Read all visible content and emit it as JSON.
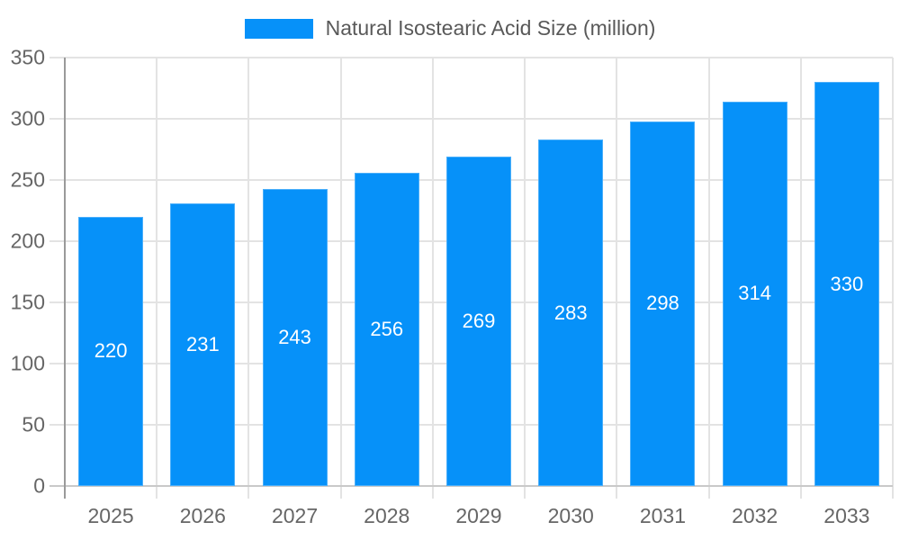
{
  "legend": {
    "items": [
      {
        "label": "Natural Isostearic Acid Size (million)",
        "color": "#0691F9"
      }
    ]
  },
  "chart_data": {
    "type": "bar",
    "title": "",
    "categories": [
      "2025",
      "2026",
      "2027",
      "2028",
      "2029",
      "2030",
      "2031",
      "2032",
      "2033"
    ],
    "series": [
      {
        "name": "Natural Isostearic Acid Size (million)",
        "values": [
          220,
          231,
          243,
          256,
          269,
          283,
          298,
          314,
          330
        ]
      }
    ],
    "xlabel": "",
    "ylabel": "",
    "ylim": [
      0,
      350
    ],
    "ytick_interval": 50,
    "yticks": [
      0,
      50,
      100,
      150,
      200,
      250,
      300,
      350
    ],
    "grid": true,
    "legend_position": "top",
    "bar_color": "#0691F9",
    "value_label_color": "#FFFFFF"
  },
  "colors": {
    "background": "#FFFFFF",
    "grid": "#E3E3E3",
    "y_axis": "#9A9A9A",
    "x_axis": "#C9C9C9",
    "tick_label": "#666666",
    "legend_text": "#595959"
  }
}
